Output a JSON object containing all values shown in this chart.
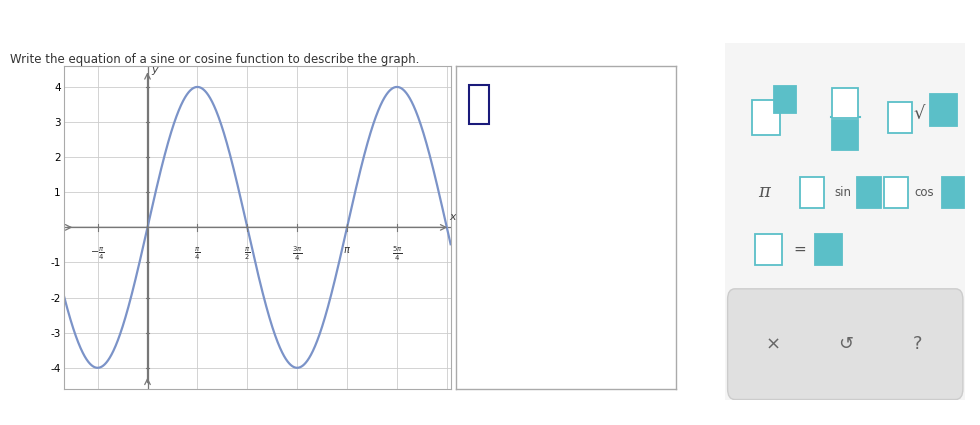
{
  "title": "Write the equation of a sine or cosine function to describe the graph.",
  "header_color": "#5bbfc8",
  "bg_color": "#ffffff",
  "graph_bg": "#ffffff",
  "grid_color": "#cccccc",
  "sine_color": "#7b93c8",
  "sine_amplitude": 4,
  "sine_b": 2,
  "x_ticks_pi": [
    -0.25,
    0.25,
    0.5,
    0.75,
    1.0,
    1.25
  ],
  "x_tick_labels": [
    "-\\frac{\\pi}{4}",
    "\\frac{\\pi}{4}",
    "\\frac{\\pi}{2}",
    "\\frac{3\\pi}{4}",
    "\\pi",
    "\\frac{5\\pi}{4}"
  ],
  "y_ticks": [
    -4,
    -3,
    -2,
    -1,
    1,
    2,
    3,
    4
  ],
  "xlim_pi": [
    -0.42,
    1.52
  ],
  "ylim": [
    -4.6,
    4.6
  ],
  "teal": "#5bbfc8",
  "teal_fill": "#5bbfc8",
  "gray_box": "#e8e8e8",
  "dark_gray": "#555555",
  "answer_border": "#1a1a7a",
  "panel_bg": "#f5f5f5",
  "panel_border": "#cccccc"
}
